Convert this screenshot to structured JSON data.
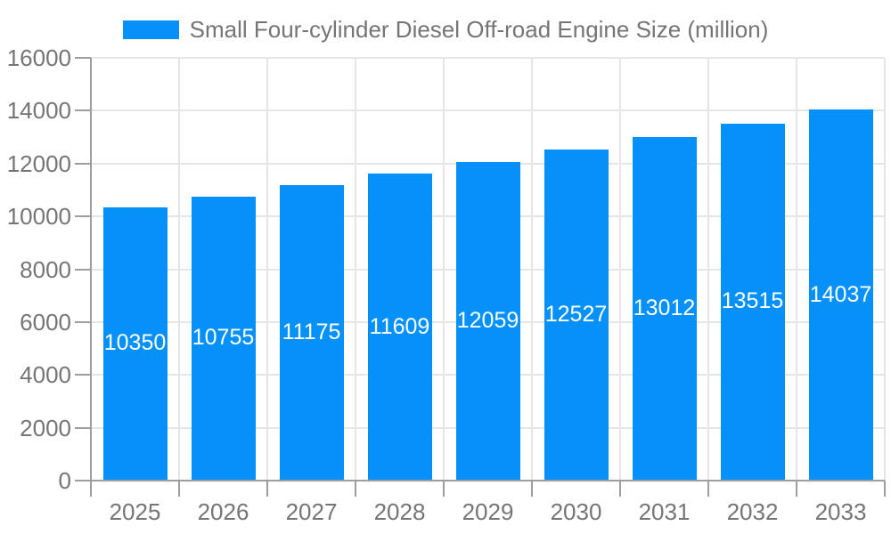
{
  "legend": {
    "label": "Small Four-cylinder Diesel Off-road Engine Size (million)",
    "swatch_color": "#0690fa"
  },
  "chart_data": {
    "type": "bar",
    "title": "Small Four-cylinder Diesel Off-road Engine Size (million)",
    "categories": [
      "2025",
      "2026",
      "2027",
      "2028",
      "2029",
      "2030",
      "2031",
      "2032",
      "2033"
    ],
    "values": [
      10350,
      10755,
      11175,
      11609,
      12059,
      12527,
      13012,
      13515,
      14037
    ],
    "xlabel": "",
    "ylabel": "",
    "ylim": [
      0,
      16000
    ],
    "yticks": [
      0,
      2000,
      4000,
      6000,
      8000,
      10000,
      12000,
      14000,
      16000
    ],
    "grid": true,
    "legend_position": "top-center",
    "value_labels": "inside-center",
    "bar_color": "#0690fa",
    "value_label_color": "#ffffff"
  },
  "colors": {
    "axis_text": "#757575",
    "axis_line": "#9e9e9e",
    "gridline": "#e6e6e6",
    "background": "#ffffff"
  }
}
